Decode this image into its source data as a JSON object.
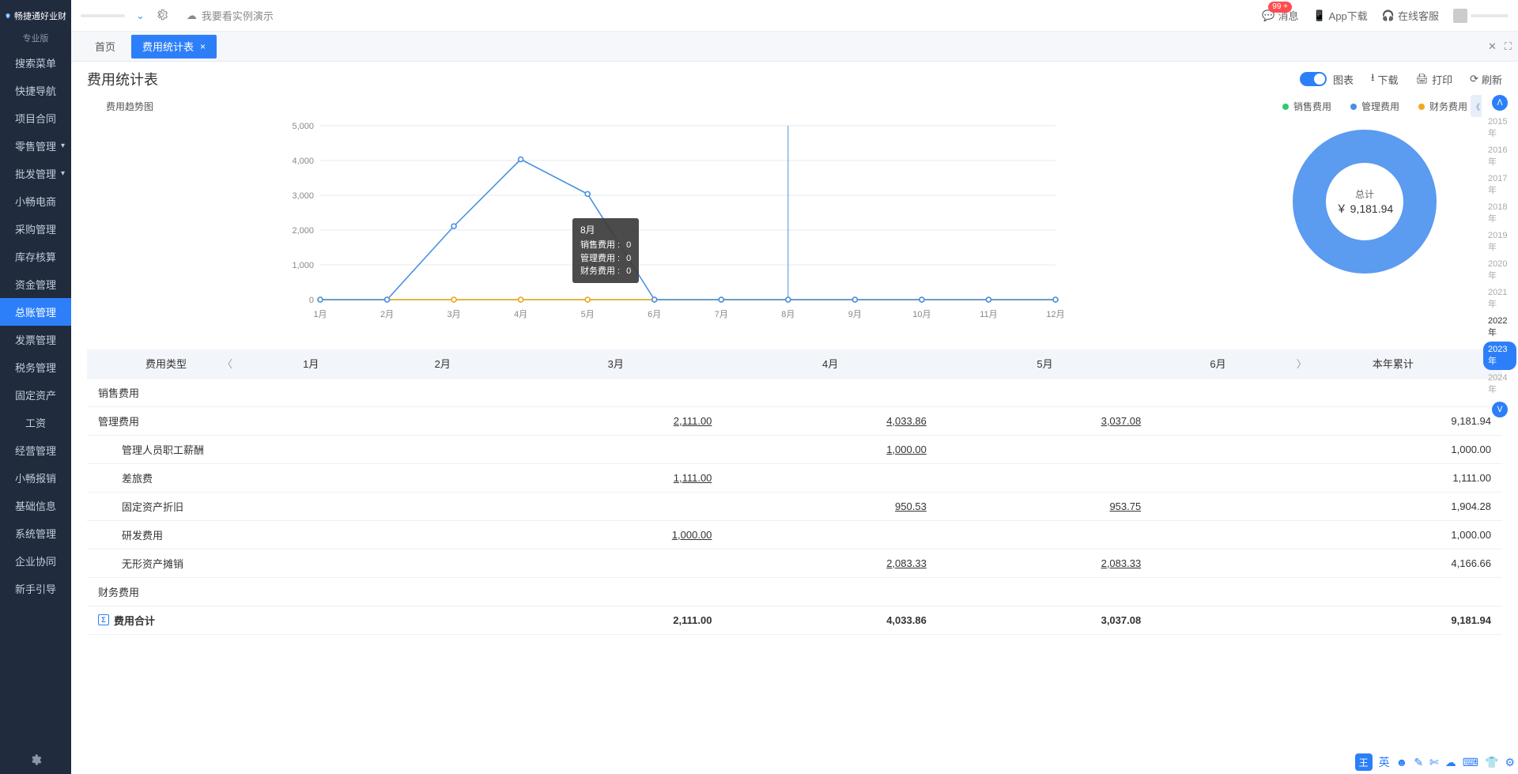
{
  "header": {
    "org_name": "",
    "demo_text": "我要看实例演示",
    "right": {
      "messages": "消息",
      "messages_badge": "99 +",
      "app_download": "App下载",
      "online_service": "在线客服",
      "user_name": ""
    }
  },
  "sidebar": {
    "brand": "畅捷通好业财",
    "edition": "专业版",
    "items": [
      {
        "label": "搜索菜单",
        "arrow": false
      },
      {
        "label": "快捷导航",
        "arrow": false
      },
      {
        "label": "项目合同",
        "arrow": false
      },
      {
        "label": "零售管理",
        "arrow": true
      },
      {
        "label": "批发管理",
        "arrow": true
      },
      {
        "label": "小畅电商",
        "arrow": false
      },
      {
        "label": "采购管理",
        "arrow": false
      },
      {
        "label": "库存核算",
        "arrow": false
      },
      {
        "label": "资金管理",
        "arrow": false
      },
      {
        "label": "总账管理",
        "arrow": false,
        "active": true
      },
      {
        "label": "发票管理",
        "arrow": false
      },
      {
        "label": "税务管理",
        "arrow": false
      },
      {
        "label": "固定资产",
        "arrow": false
      },
      {
        "label": "工资",
        "arrow": false
      },
      {
        "label": "经营管理",
        "arrow": false
      },
      {
        "label": "小畅报销",
        "arrow": false
      },
      {
        "label": "基础信息",
        "arrow": false
      },
      {
        "label": "系统管理",
        "arrow": false
      },
      {
        "label": "企业协同",
        "arrow": false
      },
      {
        "label": "新手引导",
        "arrow": false
      }
    ]
  },
  "tabs": {
    "home": "首页",
    "active": "费用统计表"
  },
  "page": {
    "title": "费用统计表",
    "actions": {
      "chart_toggle": "图表",
      "download": "下载",
      "print": "打印",
      "refresh": "刷新"
    }
  },
  "chart": {
    "title": "费用趋势图",
    "legend": [
      {
        "label": "销售费用",
        "color": "#2ecc71"
      },
      {
        "label": "管理费用",
        "color": "#4a90e2"
      },
      {
        "label": "财务费用",
        "color": "#f5a623"
      }
    ],
    "y_ticks": [
      "5,000",
      "4,000",
      "3,000",
      "2,000",
      "1,000",
      "0"
    ],
    "ylim": [
      0,
      5000
    ],
    "x_labels": [
      "1月",
      "2月",
      "3月",
      "4月",
      "5月",
      "6月",
      "7月",
      "8月",
      "9月",
      "10月",
      "11月",
      "12月"
    ],
    "series": {
      "sales": [
        0,
        0,
        0,
        0,
        0,
        0,
        0,
        0,
        0,
        0,
        0,
        0
      ],
      "admin": [
        0,
        0,
        2111,
        4034,
        3037,
        0,
        0,
        0,
        0,
        0,
        0,
        0
      ],
      "finance": [
        0,
        0,
        0,
        0,
        0,
        0,
        0,
        0,
        0,
        0,
        0,
        0
      ]
    },
    "marker_xindex": 7,
    "tooltip": {
      "title": "8月",
      "rows": [
        {
          "k": "销售费用 :",
          "v": "0"
        },
        {
          "k": "管理费用 :",
          "v": "0"
        },
        {
          "k": "财务费用 :",
          "v": "0"
        }
      ]
    },
    "grid_color": "#e6e9ed",
    "axis_font": 11,
    "line_colors": {
      "sales": "#2ecc71",
      "admin": "#4a90e2",
      "finance": "#f5a623"
    }
  },
  "donut": {
    "center_label": "总计",
    "center_value": "￥ 9,181.94",
    "color": "#5b9bf0",
    "bg": "#ffffff"
  },
  "years": {
    "list": [
      "2015年",
      "2016年",
      "2017年",
      "2018年",
      "2019年",
      "2020年",
      "2021年",
      "2022年",
      "2023年",
      "2024年"
    ],
    "current": "2022年",
    "selected": "2023年"
  },
  "table": {
    "headers": {
      "type": "费用类型",
      "months": [
        "1月",
        "2月",
        "3月",
        "4月",
        "5月",
        "6月"
      ],
      "total": "本年累计"
    },
    "rows": [
      {
        "name": "销售费用",
        "indent": false,
        "cells": [
          "",
          "",
          "",
          "",
          "",
          ""
        ],
        "total": ""
      },
      {
        "name": "管理费用",
        "indent": false,
        "cells": [
          "",
          "",
          "2,111.00",
          "4,033.86",
          "3,037.08",
          ""
        ],
        "u": [
          2,
          3,
          4
        ],
        "total": "9,181.94"
      },
      {
        "name": "管理人员职工薪酬",
        "indent": true,
        "cells": [
          "",
          "",
          "",
          "1,000.00",
          "",
          ""
        ],
        "u": [
          3
        ],
        "total": "1,000.00"
      },
      {
        "name": "差旅费",
        "indent": true,
        "cells": [
          "",
          "",
          "1,111.00",
          "",
          "",
          ""
        ],
        "u": [
          2
        ],
        "total": "1,111.00"
      },
      {
        "name": "固定资产折旧",
        "indent": true,
        "cells": [
          "",
          "",
          "",
          "950.53",
          "953.75",
          ""
        ],
        "u": [
          3,
          4
        ],
        "total": "1,904.28"
      },
      {
        "name": "研发费用",
        "indent": true,
        "cells": [
          "",
          "",
          "1,000.00",
          "",
          "",
          ""
        ],
        "u": [
          2
        ],
        "total": "1,000.00"
      },
      {
        "name": "无形资产摊销",
        "indent": true,
        "cells": [
          "",
          "",
          "",
          "2,083.33",
          "2,083.33",
          ""
        ],
        "u": [
          3,
          4
        ],
        "total": "4,166.66"
      },
      {
        "name": "财务费用",
        "indent": false,
        "cells": [
          "",
          "",
          "",
          "",
          "",
          ""
        ],
        "total": ""
      }
    ],
    "total_row": {
      "name": "费用合计",
      "cells": [
        "",
        "",
        "2,111.00",
        "4,033.86",
        "3,037.08",
        ""
      ],
      "total": "9,181.94"
    }
  },
  "ime": {
    "box": "王",
    "lang": "英"
  }
}
